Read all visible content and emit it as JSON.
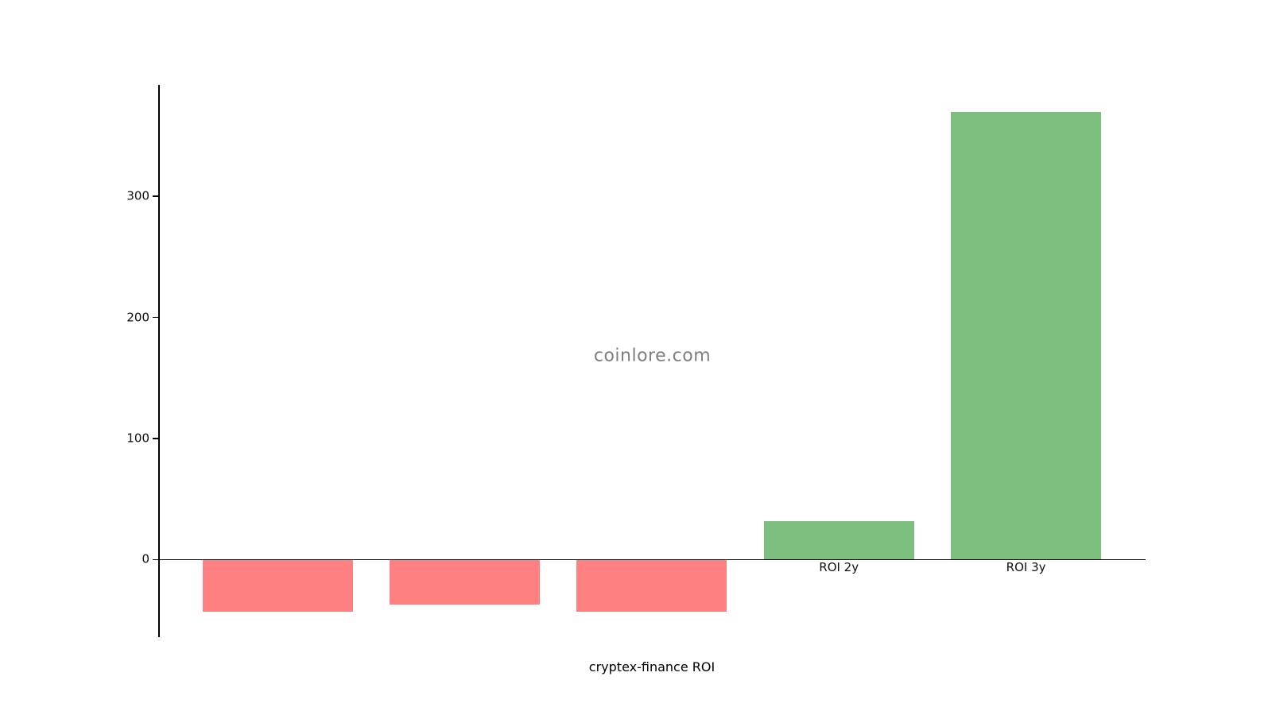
{
  "chart_data": {
    "type": "bar",
    "title": "cryptex-finance ROI",
    "watermark": "coinlore.com",
    "categories": [
      "",
      "",
      "",
      "ROI 2y",
      "ROI 3y"
    ],
    "values": [
      -43,
      -37,
      -43,
      32,
      370
    ],
    "series": [
      {
        "name": "ROI",
        "values": [
          -43,
          -37,
          -43,
          32,
          370
        ]
      }
    ],
    "yticks": [
      0,
      100,
      200,
      300
    ],
    "ylim": [
      -64,
      392
    ],
    "xlabel": "cryptex-finance ROI",
    "ylabel": "",
    "grid": false,
    "legend_position": "none",
    "colors": {
      "positive_bar": "#7dbf7f",
      "negative_bar": "#ff8080",
      "axis": "#000000",
      "tick_text": "#111111",
      "watermark_text": "#7f7f7f"
    },
    "notes": "zero baseline drawn across full plot width; x tick labels visible only for the two positive bars"
  }
}
